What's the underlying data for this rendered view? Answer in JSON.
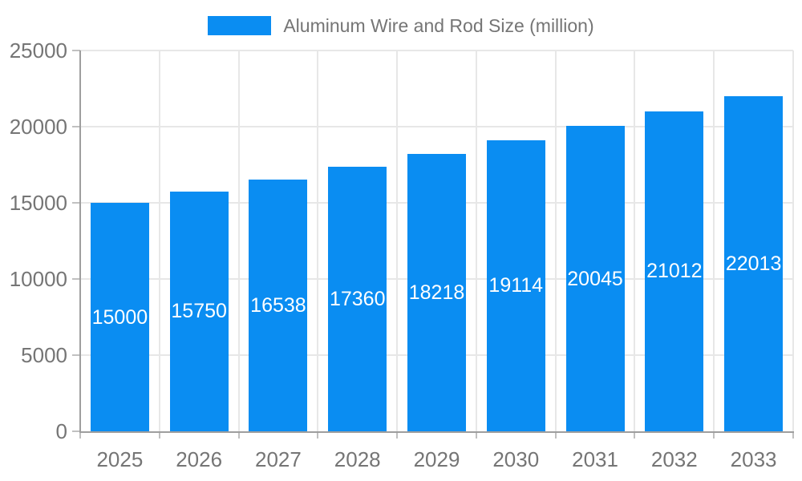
{
  "chart_data": {
    "type": "bar",
    "title": "Aluminum Wire and Rod Size (million)",
    "categories": [
      "2025",
      "2026",
      "2027",
      "2028",
      "2029",
      "2030",
      "2031",
      "2032",
      "2033"
    ],
    "values": [
      15000,
      15750,
      16538,
      17360,
      18218,
      19114,
      20045,
      21012,
      22013
    ],
    "xlabel": "",
    "ylabel": "",
    "ylim": [
      0,
      25000
    ],
    "yticks": [
      0,
      5000,
      10000,
      15000,
      20000,
      25000
    ],
    "grid": true,
    "legend_position": "top",
    "value_label_position": "inside-center",
    "colors": {
      "bar_fill": "#0a8df2",
      "value_label": "#ffffff",
      "axis_line": "#9e9e9e",
      "grid_line": "#e7e7e7",
      "tick_mark": "#c0c0c0",
      "axis_text": "#757575",
      "legend_text": "#757575",
      "background": "#ffffff"
    }
  }
}
